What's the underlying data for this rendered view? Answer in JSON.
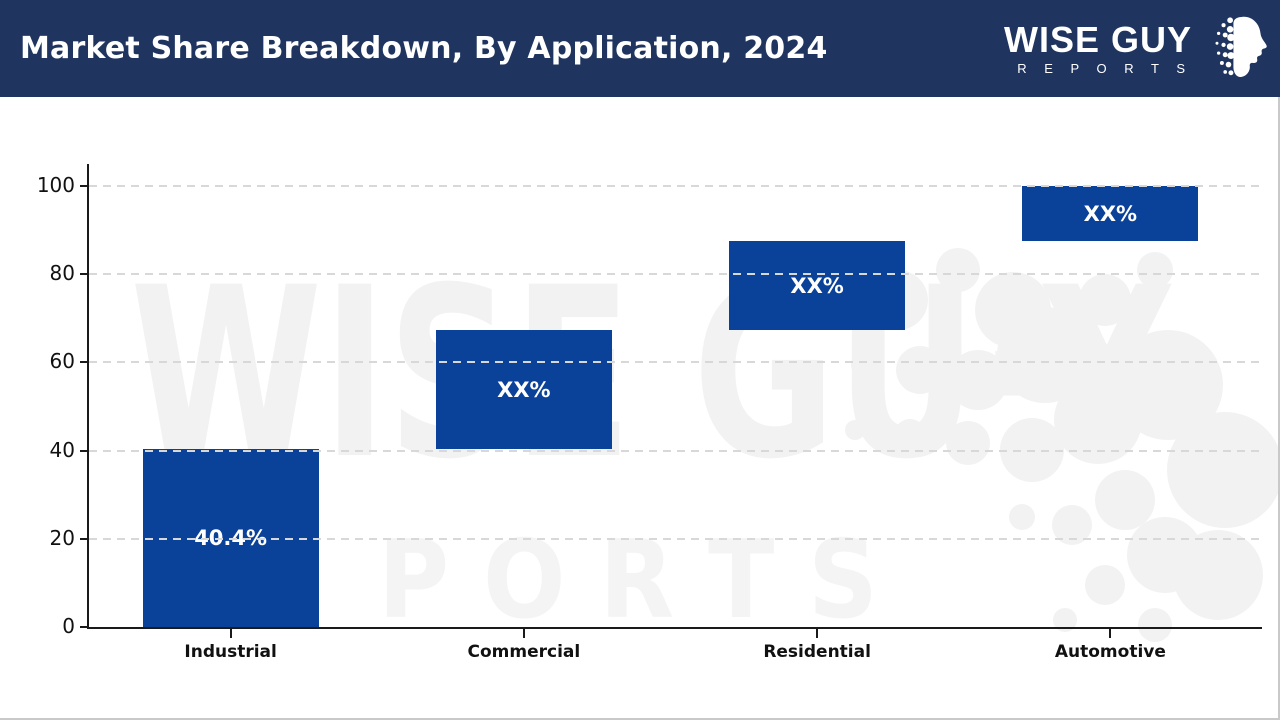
{
  "header": {
    "title": "Market Share Breakdown, By Application, 2024"
  },
  "logo": {
    "line1": "WISE GUY",
    "line2": "R E P O R T S"
  },
  "watermark": {
    "line1": "WISE GU·Y",
    "line2": "P O R T S"
  },
  "colors": {
    "header_bg": "#1f355f",
    "bar": "#0a4199",
    "grid": "#d8d8d8",
    "axis": "#1a1a1a",
    "watermark": "#f2f2f2"
  },
  "chart_data": {
    "type": "bar",
    "subtype": "waterfall",
    "title": "Market Share Breakdown, By Application, 2024",
    "xlabel": "",
    "ylabel": "",
    "categories": [
      "Industrial",
      "Commercial",
      "Residential",
      "Automotive"
    ],
    "segments": [
      {
        "category": "Industrial",
        "start": 0,
        "end": 40.4,
        "value_label": "40.4%"
      },
      {
        "category": "Commercial",
        "start": 40.4,
        "end": 67.3,
        "value_label": "XX%"
      },
      {
        "category": "Residential",
        "start": 67.3,
        "end": 87.5,
        "value_label": "XX%"
      },
      {
        "category": "Automotive",
        "start": 87.5,
        "end": 100,
        "value_label": "XX%"
      }
    ],
    "yticks": [
      0,
      20,
      40,
      60,
      80,
      100
    ],
    "ylim": [
      0,
      105
    ],
    "grid": "horizontal-dashed",
    "legend": "none",
    "bar_color": "#0a4199",
    "bar_label_color": "#ffffff"
  }
}
